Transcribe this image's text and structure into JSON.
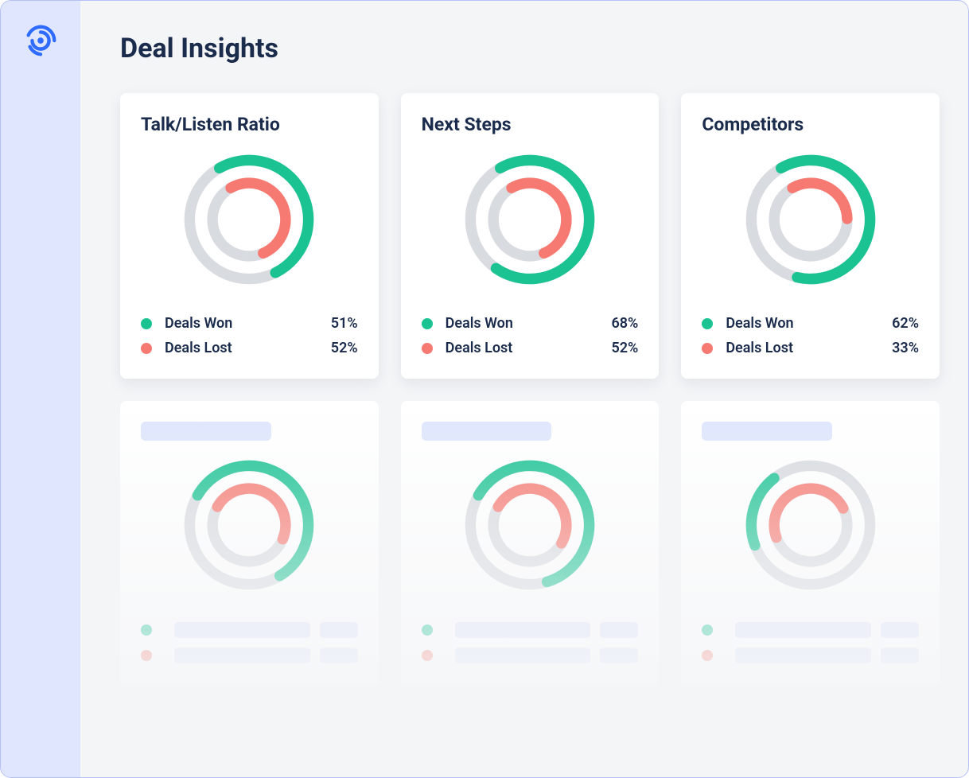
{
  "brand": {
    "logo_color": "#2f6bff"
  },
  "page": {
    "title": "Deal Insights",
    "background_color": "#f4f5f7",
    "sidebar_color": "#dfe6fd",
    "frame_border_color": "#b5c0f7",
    "text_color": "#1a2b4c"
  },
  "colors": {
    "won": "#1bc393",
    "lost": "#f77a72",
    "track": "#d8dbe0",
    "placeholder": "#dfe6fd"
  },
  "legend_labels": {
    "won": "Deals Won",
    "lost": "Deals Lost"
  },
  "cards": [
    {
      "title": "Talk/Listen Ratio",
      "won_pct": 51,
      "lost_pct": 52,
      "won_label": "51%",
      "lost_label": "52%",
      "chart": {
        "type": "double-donut",
        "outer_radius": 78,
        "inner_radius": 48,
        "stroke_width": 14,
        "track_color": "#d8dbe0",
        "outer_color": "#1bc393",
        "inner_color": "#f77a72",
        "outer_value": 51,
        "inner_value": 52,
        "rotation_deg": -120
      }
    },
    {
      "title": "Next Steps",
      "won_pct": 68,
      "lost_pct": 52,
      "won_label": "68%",
      "lost_label": "52%",
      "chart": {
        "type": "double-donut",
        "outer_radius": 78,
        "inner_radius": 48,
        "stroke_width": 14,
        "track_color": "#d8dbe0",
        "outer_color": "#1bc393",
        "inner_color": "#f77a72",
        "outer_value": 68,
        "inner_value": 52,
        "rotation_deg": -120
      }
    },
    {
      "title": "Competitors",
      "won_pct": 62,
      "lost_pct": 33,
      "won_label": "62%",
      "lost_label": "33%",
      "chart": {
        "type": "double-donut",
        "outer_radius": 78,
        "inner_radius": 48,
        "stroke_width": 14,
        "track_color": "#d8dbe0",
        "outer_color": "#1bc393",
        "inner_color": "#f77a72",
        "outer_value": 62,
        "inner_value": 33,
        "rotation_deg": -120
      }
    }
  ],
  "placeholder_cards": [
    {
      "chart": {
        "outer_value": 58,
        "inner_value": 48,
        "rotation_deg": -150,
        "outer_radius": 78,
        "inner_radius": 48,
        "stroke_width": 14,
        "track_color": "#d8dbe0",
        "outer_color": "#1bc393",
        "inner_color": "#f77a72"
      }
    },
    {
      "chart": {
        "outer_value": 62,
        "inner_value": 50,
        "rotation_deg": -150,
        "outer_radius": 78,
        "inner_radius": 48,
        "stroke_width": 14,
        "track_color": "#d8dbe0",
        "outer_color": "#1bc393",
        "inner_color": "#f77a72"
      }
    },
    {
      "chart": {
        "outer_value": 20,
        "inner_value": 48,
        "rotation_deg": -200,
        "outer_radius": 78,
        "inner_radius": 48,
        "stroke_width": 14,
        "track_color": "#d8dbe0",
        "outer_color": "#1bc393",
        "inner_color": "#f77a72"
      }
    }
  ]
}
